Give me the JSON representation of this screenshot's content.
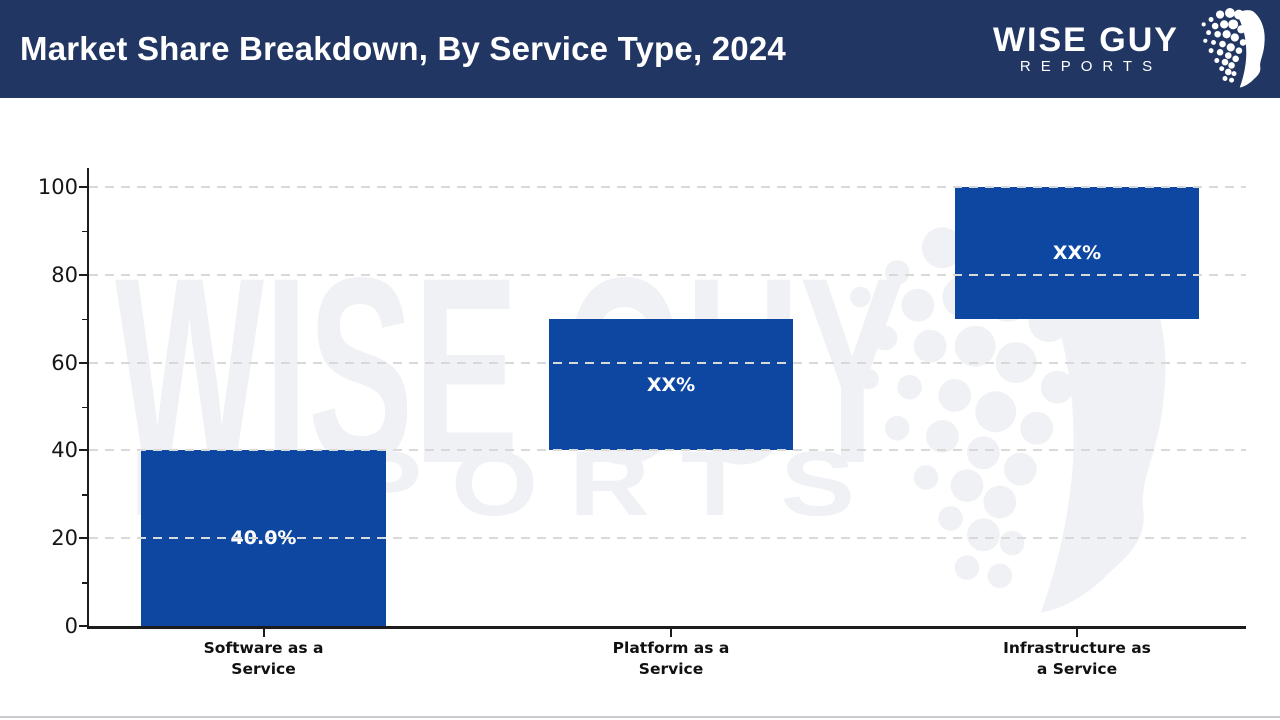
{
  "header": {
    "title": "Market Share Breakdown, By Service Type, 2024",
    "background_color": "#213663",
    "logo": {
      "line1": "WISE GUY",
      "line2": "REPORTS"
    }
  },
  "watermark": {
    "line1": "WISE GUY",
    "line2": "R E P O R T S"
  },
  "chart_data": {
    "type": "bar",
    "variant": "floating-waterfall",
    "title": "Market Share Breakdown, By Service Type, 2024",
    "categories": [
      "Software as a Service",
      "Platform as a Service",
      "Infrastructure as a Service"
    ],
    "category_label_lines": [
      [
        "Software as a",
        "Service"
      ],
      [
        "Platform as a",
        "Service"
      ],
      [
        "Infrastructure as",
        "a Service"
      ]
    ],
    "bars": [
      {
        "category": "Software as a Service",
        "start": 0,
        "end": 40,
        "value_label": "40.0%"
      },
      {
        "category": "Platform as a Service",
        "start": 40,
        "end": 70,
        "value_label": "XX%"
      },
      {
        "category": "Infrastructure as a Service",
        "start": 70,
        "end": 100,
        "value_label": "XX%"
      }
    ],
    "xlabel": "",
    "ylabel": "",
    "yticks": [
      0,
      20,
      40,
      60,
      80,
      100
    ],
    "minor_yticks": [
      10,
      30,
      50,
      70,
      90
    ],
    "ylim": [
      0,
      104
    ],
    "grid": {
      "horizontal": true,
      "style": "dashed",
      "over_bars": true,
      "color": "#d9d9d9"
    },
    "colors": {
      "bar": "#0d47a1",
      "bar_label": "#ffffff",
      "axis": "#1c1c1c",
      "tick_label": "#161616",
      "watermark": "#f0f1f4"
    }
  }
}
